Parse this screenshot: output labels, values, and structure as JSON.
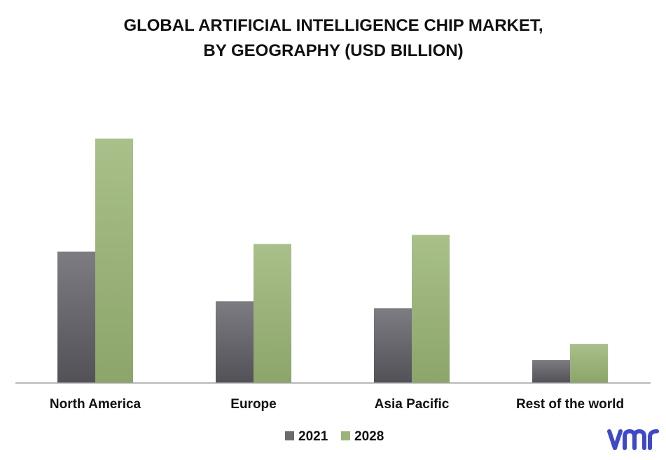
{
  "chart_data": {
    "type": "bar",
    "title_lines": [
      "GLOBAL ARTIFICIAL INTELLIGENCE CHIP MARKET,",
      "BY GEOGRAPHY (USD BILLION)"
    ],
    "categories": [
      "North America",
      "Europe",
      "Asia Pacific",
      "Rest of the world"
    ],
    "series": [
      {
        "name": "2021",
        "values": [
          18.8,
          11.7,
          10.7,
          3.3
        ]
      },
      {
        "name": "2028",
        "values": [
          35.0,
          19.9,
          21.2,
          5.6
        ]
      }
    ],
    "ylim": [
      0,
      40
    ],
    "grid": false,
    "legend_position": "bottom",
    "colors": {
      "2021": "#6b6b70",
      "2028": "#9db37a",
      "axis": "#a0a0a0"
    }
  },
  "brand": {
    "logo_text": "vmr",
    "logo_color": "#3f49c8"
  }
}
